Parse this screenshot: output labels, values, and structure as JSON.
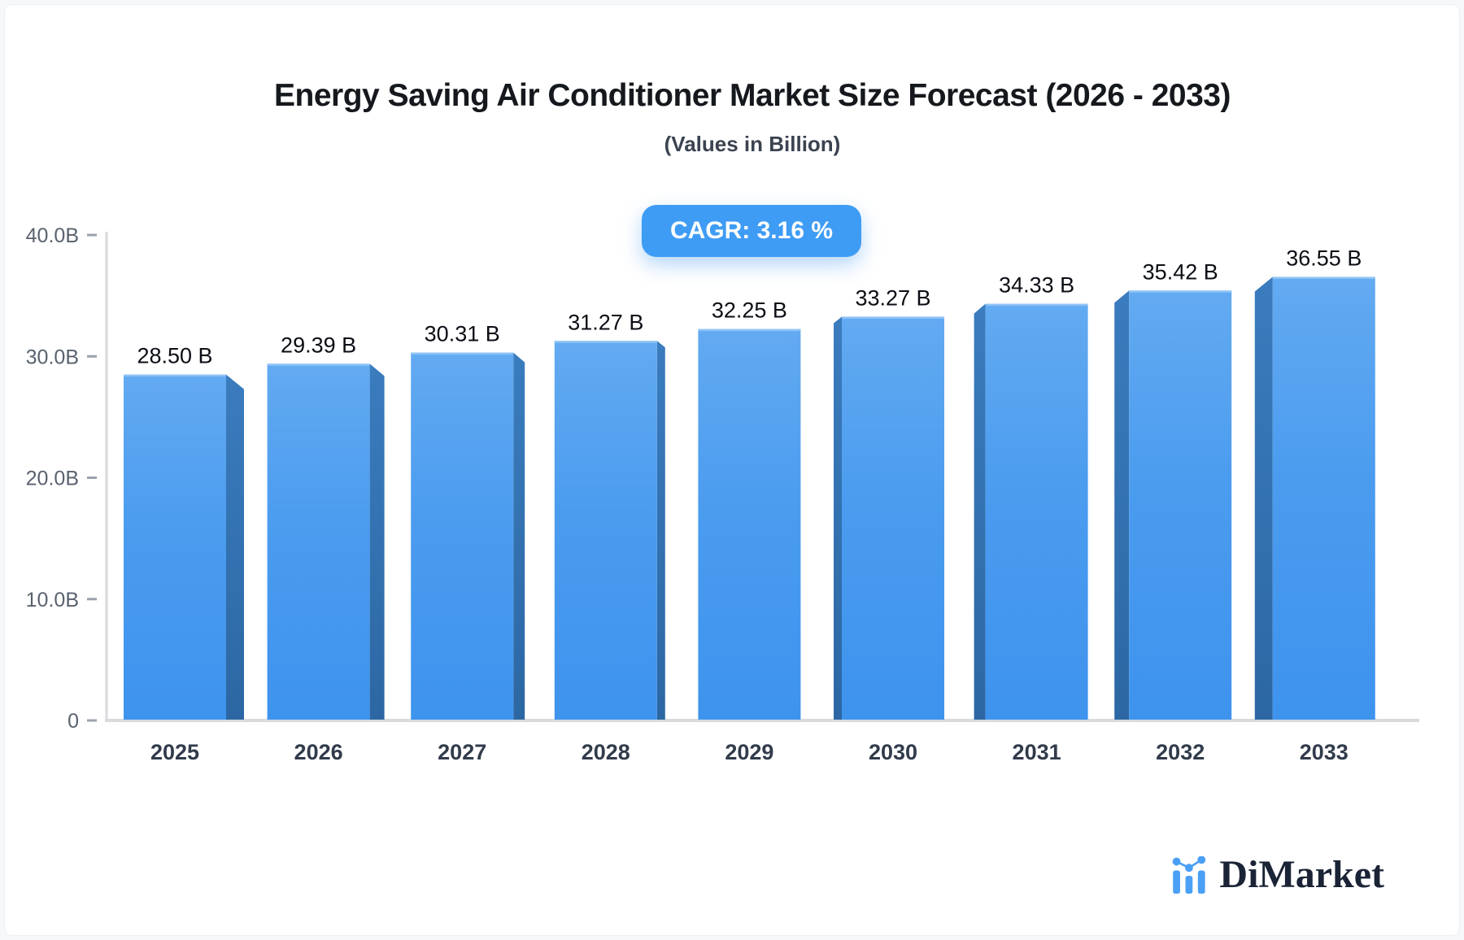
{
  "page": {
    "background": "#f6f8fa",
    "card_background": "#ffffff"
  },
  "cagr_badge": {
    "label": "CAGR: 3.16 %",
    "background": "#3f9cf4",
    "text_color": "#ffffff"
  },
  "logo": {
    "text": "DiMarket",
    "icon": "bar-chart-logo-icon",
    "icon_color": "#4aa0f5",
    "text_color": "#1b2436"
  },
  "chart_data": {
    "type": "bar",
    "title": "Energy Saving Air Conditioner Market Size Forecast (2026 - 2033)",
    "subtitle": "(Values in Billion)",
    "categories": [
      "2025",
      "2026",
      "2027",
      "2028",
      "2029",
      "2030",
      "2031",
      "2032",
      "2033"
    ],
    "values": [
      28.5,
      29.39,
      30.31,
      31.27,
      32.25,
      33.27,
      34.33,
      35.42,
      36.55
    ],
    "value_labels": [
      "28.50 B",
      "29.39 B",
      "30.31 B",
      "31.27 B",
      "32.25 B",
      "33.27 B",
      "34.33 B",
      "35.42 B",
      "36.55 B"
    ],
    "xlabel": "",
    "ylabel": "",
    "ylim": [
      0,
      40
    ],
    "y_ticks": [
      {
        "value": 0,
        "label": "0"
      },
      {
        "value": 10,
        "label": "10.0B"
      },
      {
        "value": 20,
        "label": "20.0B"
      },
      {
        "value": 30,
        "label": "30.0B"
      },
      {
        "value": 40,
        "label": "40.0B"
      }
    ],
    "grid": false,
    "legend": "none",
    "colors": {
      "bar_top": "#63aaf1",
      "bar_mid": "#4b9cef",
      "bar_bottom": "#3e93ed",
      "bar_top_highlight": "#8ec2f6",
      "bar_side_top": "#3a7cbe",
      "bar_side_bottom": "#2c67a3",
      "axis_line": "#d8dadd",
      "tick_mark": "#9ba1ac"
    }
  }
}
